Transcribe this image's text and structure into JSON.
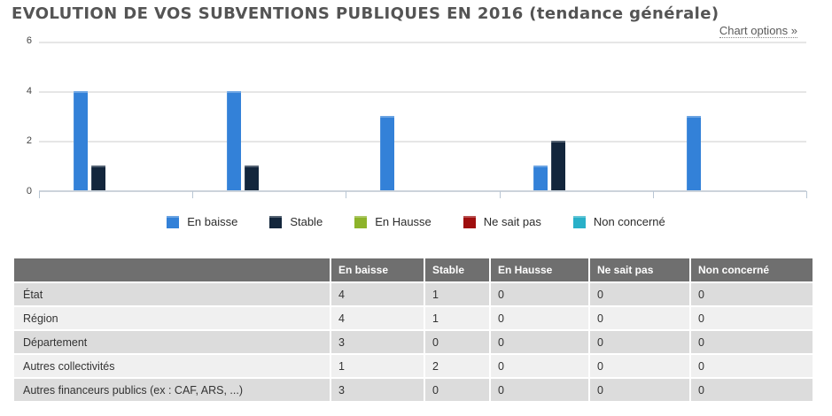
{
  "header": {
    "title": "EVOLUTION DE VOS SUBVENTIONS PUBLIQUES EN 2016 (tendance générale)",
    "chart_options_label": "Chart options »"
  },
  "colors": {
    "en_baisse": "#3381d8",
    "stable": "#13263c",
    "en_hausse": "#8db32a",
    "ne_sait_pas": "#9f0e0e",
    "non_concerne": "#29b0c8",
    "grid": "#e6e6e6",
    "baseline": "#ccd3db",
    "table_header_bg": "#6f6f6f",
    "row_dark_bg": "#dcdcdc",
    "row_light_bg": "#f0f0f0"
  },
  "chart_data": {
    "type": "bar",
    "title": "EVOLUTION DE VOS SUBVENTIONS PUBLIQUES EN 2016 (tendance générale)",
    "categories": [
      "État",
      "Région",
      "Département",
      "Autres collectivités",
      "Autres financeurs publics (ex : CAF, ARS, ...)"
    ],
    "series": [
      {
        "name": "En baisse",
        "color": "#3381d8",
        "values": [
          4,
          4,
          3,
          1,
          3
        ]
      },
      {
        "name": "Stable",
        "color": "#13263c",
        "values": [
          1,
          1,
          0,
          2,
          0
        ]
      },
      {
        "name": "En Hausse",
        "color": "#8db32a",
        "values": [
          0,
          0,
          0,
          0,
          0
        ]
      },
      {
        "name": "Ne sait pas",
        "color": "#9f0e0e",
        "values": [
          0,
          0,
          0,
          0,
          0
        ]
      },
      {
        "name": "Non concerné",
        "color": "#29b0c8",
        "values": [
          0,
          0,
          0,
          0,
          0
        ]
      }
    ],
    "xlabel": "",
    "ylabel": "",
    "ylim": [
      0,
      6
    ],
    "yticks": [
      0,
      2,
      4,
      6
    ],
    "grid": true,
    "legend_position": "bottom",
    "x_axis_labels_shown": false
  },
  "table": {
    "headers": [
      "",
      "En baisse",
      "Stable",
      "En Hausse",
      "Ne sait pas",
      "Non concerné"
    ],
    "rows": [
      {
        "label": "État",
        "values": [
          4,
          1,
          0,
          0,
          0
        ]
      },
      {
        "label": "Région",
        "values": [
          4,
          1,
          0,
          0,
          0
        ]
      },
      {
        "label": "Département",
        "values": [
          3,
          0,
          0,
          0,
          0
        ]
      },
      {
        "label": "Autres collectivités",
        "values": [
          1,
          2,
          0,
          0,
          0
        ]
      },
      {
        "label": "Autres financeurs publics (ex : CAF, ARS, ...)",
        "values": [
          3,
          0,
          0,
          0,
          0
        ]
      }
    ]
  }
}
